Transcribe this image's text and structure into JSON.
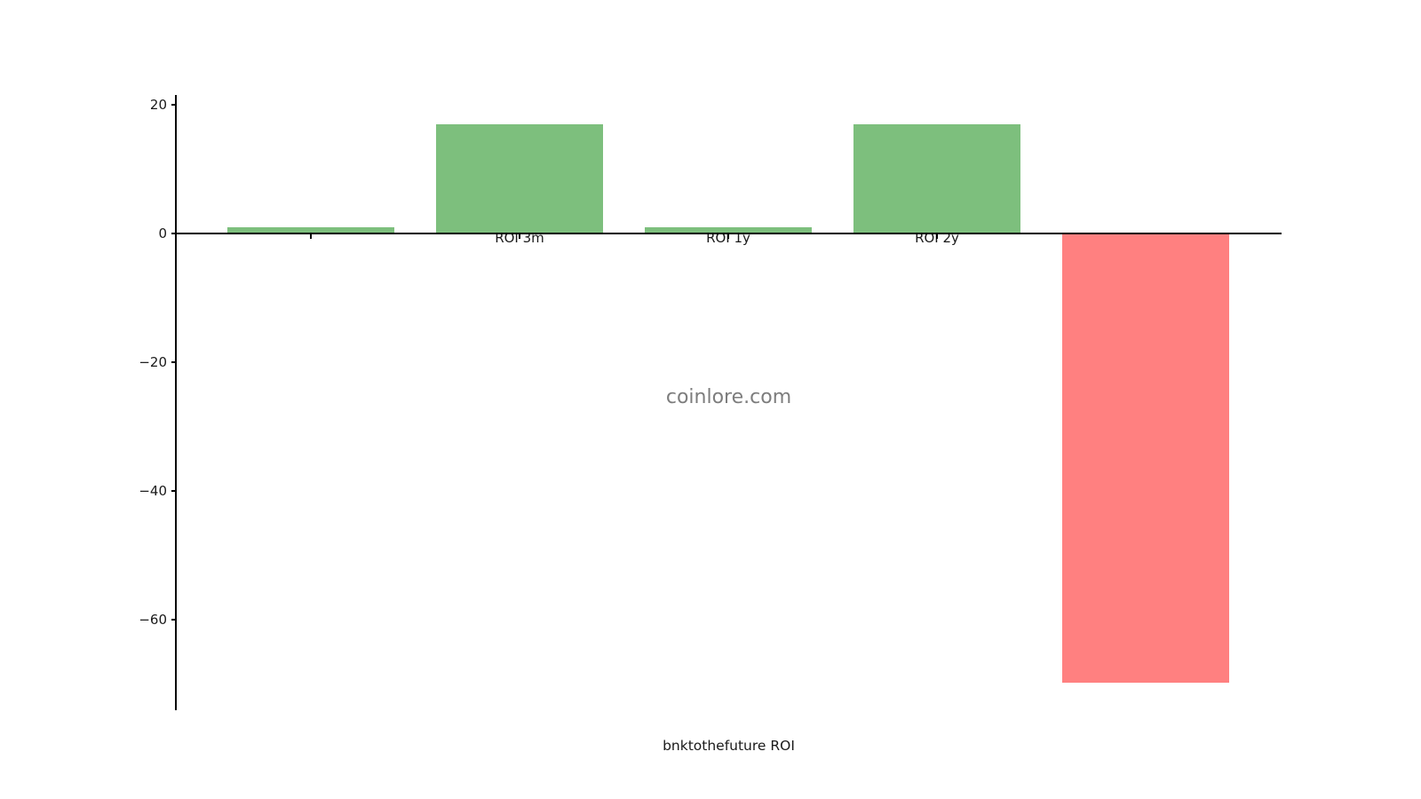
{
  "watermark": {
    "text": "coinlore.com",
    "color": "#7d7d7d"
  },
  "chart_data": {
    "type": "bar",
    "title": "bnktothefuture ROI",
    "xlabel": "",
    "ylabel": "",
    "categories": [
      "",
      "ROI 3m",
      "ROI 1y",
      "ROI 2y",
      ""
    ],
    "values": [
      1,
      17,
      1,
      17,
      -69.8
    ],
    "bar_colors": [
      "#7dbf7d",
      "#7dbf7d",
      "#7dbf7d",
      "#7dbf7d",
      "#ff8080"
    ],
    "yticks": [
      20,
      0,
      -20,
      -40,
      -60
    ],
    "ytick_labels": [
      "20",
      "0",
      "−20",
      "−40",
      "−60"
    ],
    "ylim": [
      -74,
      21.5
    ],
    "grid": false,
    "legend": null,
    "colors": {
      "positive": "#7dbf7d",
      "negative": "#ff8080",
      "axis": "#000000",
      "text": "#1a1a1a",
      "watermark": "#7d7d7d"
    }
  }
}
